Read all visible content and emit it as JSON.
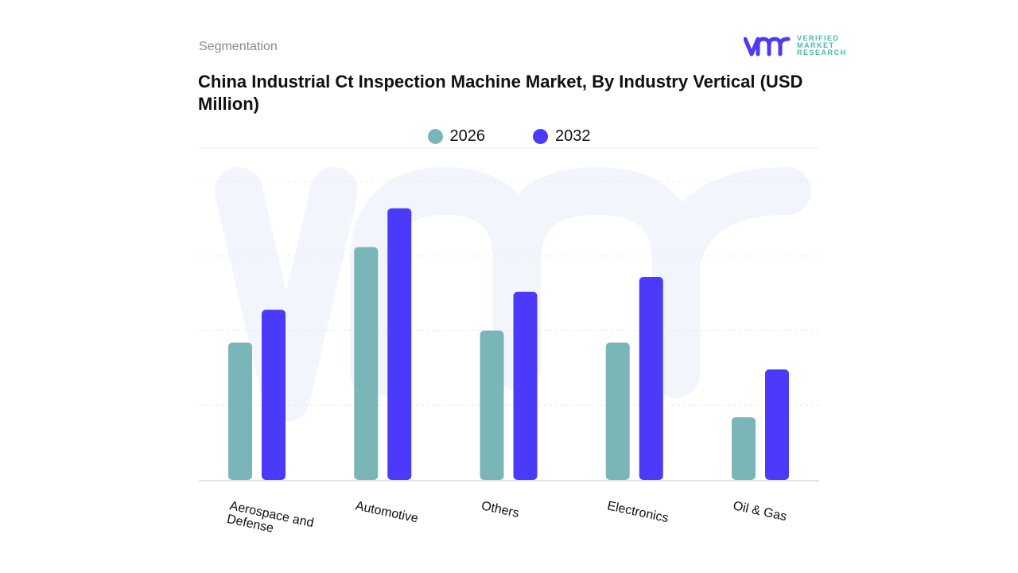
{
  "header": {
    "section": "Segmentation",
    "title": "China Industrial Ct Inspection Machine Market, By Industry Vertical (USD Million)",
    "logo": {
      "line1": "VERIFIED",
      "line2": "MARKET",
      "line3": "RESEARCH",
      "mark": "vmr"
    }
  },
  "colors": {
    "2026": "#7ab5b8",
    "2032": "#4b3af9",
    "logo_mark": "#4b3af9",
    "logo_text": "#4ab8b0"
  },
  "chart_data": {
    "type": "bar",
    "title": "China Industrial Ct Inspection Machine Market, By Industry Vertical (USD Million)",
    "categories": [
      "Aerospace and Defense",
      "Automotive",
      "Others",
      "Electronics",
      "Oil & Gas"
    ],
    "series": [
      {
        "name": "2026",
        "values": [
          46,
          78,
          50,
          46,
          21
        ]
      },
      {
        "name": "2032",
        "values": [
          57,
          91,
          63,
          68,
          37
        ]
      }
    ],
    "ylim": [
      0,
      100
    ],
    "ylabel": "",
    "xlabel": "",
    "y_tick_labels_shown": false,
    "grid": true,
    "legend": "top-center"
  }
}
